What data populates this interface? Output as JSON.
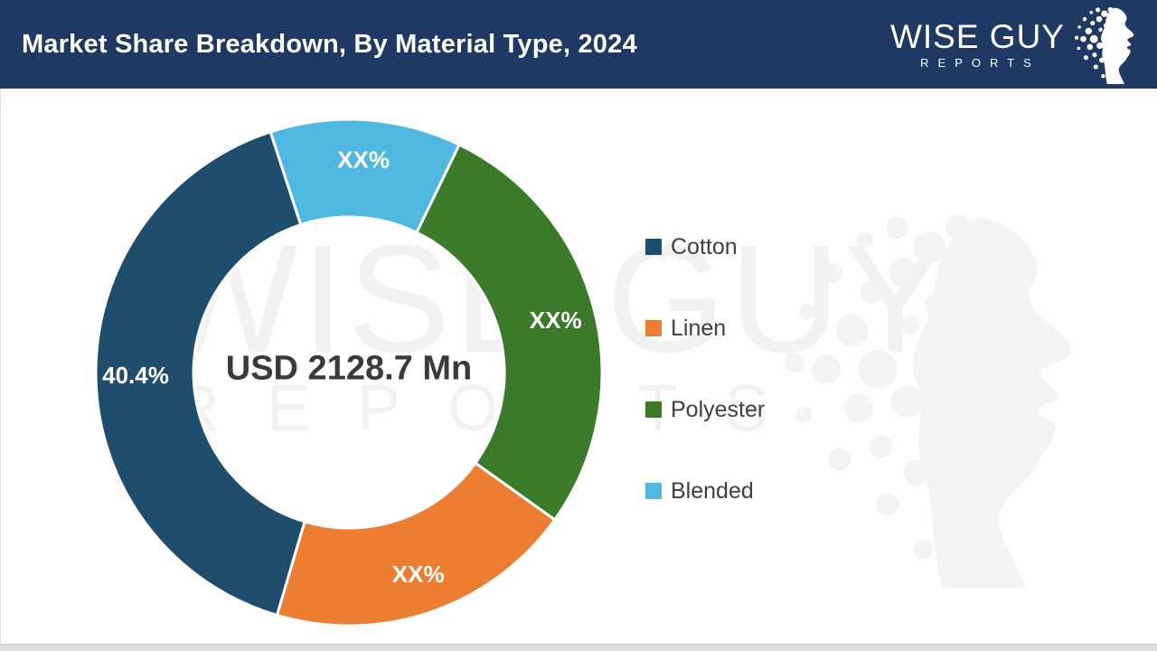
{
  "header": {
    "title": "Market Share Breakdown, By Material Type, 2024",
    "logo": {
      "line1": "WISE GUY",
      "line2": "REPORTS"
    }
  },
  "watermark": {
    "line1": "WISE GUY",
    "line2": "REPORTS"
  },
  "chart_data": {
    "type": "donut",
    "title": "Market Share Breakdown, By Material Type, 2024",
    "center_label": "USD 2128.7 Mn",
    "start_angle_deg": 196.5,
    "legend_position": "right",
    "segments": [
      {
        "name": "Cotton",
        "value_pct": 40.4,
        "label": "40.4%",
        "color": "#1e4d6d"
      },
      {
        "name": "Blended",
        "value_pct": 12.2,
        "label": "XX%",
        "color": "#4fb8e0"
      },
      {
        "name": "Polyester",
        "value_pct": 27.7,
        "label": "XX%",
        "color": "#3b7a28"
      },
      {
        "name": "Linen",
        "value_pct": 19.7,
        "label": "XX%",
        "color": "#ed7d31"
      }
    ]
  },
  "legend": {
    "items": [
      {
        "label": "Cotton",
        "color": "#1e4d6d"
      },
      {
        "label": "Linen",
        "color": "#ed7d31"
      },
      {
        "label": "Polyester",
        "color": "#3b7a28"
      },
      {
        "label": "Blended",
        "color": "#4fb8e0"
      }
    ]
  },
  "colors": {
    "header_bg": "#1f3864",
    "footer_bar": "#dcdcdc",
    "watermark": "#f2f2f2",
    "center_text": "#3a3a3a"
  }
}
